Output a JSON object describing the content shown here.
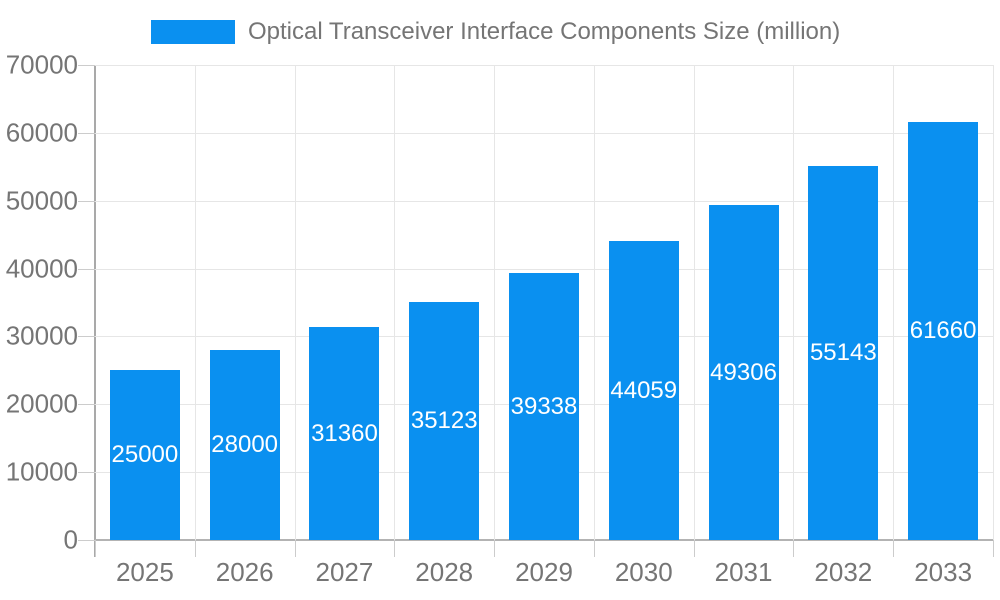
{
  "chart_data": {
    "type": "bar",
    "title": "",
    "categories": [
      "2025",
      "2026",
      "2027",
      "2028",
      "2029",
      "2030",
      "2031",
      "2032",
      "2033"
    ],
    "values": [
      25000,
      28000,
      31360,
      35123,
      39338,
      44059,
      49306,
      55143,
      61660
    ],
    "series_name": "Optical Transceiver Interface Components Size (million)",
    "xlabel": "",
    "ylabel": "",
    "ylim": [
      0,
      70000
    ],
    "yticks": [
      0,
      10000,
      20000,
      30000,
      40000,
      50000,
      60000,
      70000
    ],
    "grid": true,
    "legend_position": "top",
    "bar_labels_inside": true,
    "colors": {
      "bar": "#0a90f0",
      "bar_label_text": "#ffffff",
      "axis_line": "#a9a9a9",
      "gridline": "#e6e6e6",
      "tick_mark": "#cccccc",
      "tick_label_text": "#757575",
      "legend_text": "#757575",
      "background": "#ffffff"
    }
  }
}
